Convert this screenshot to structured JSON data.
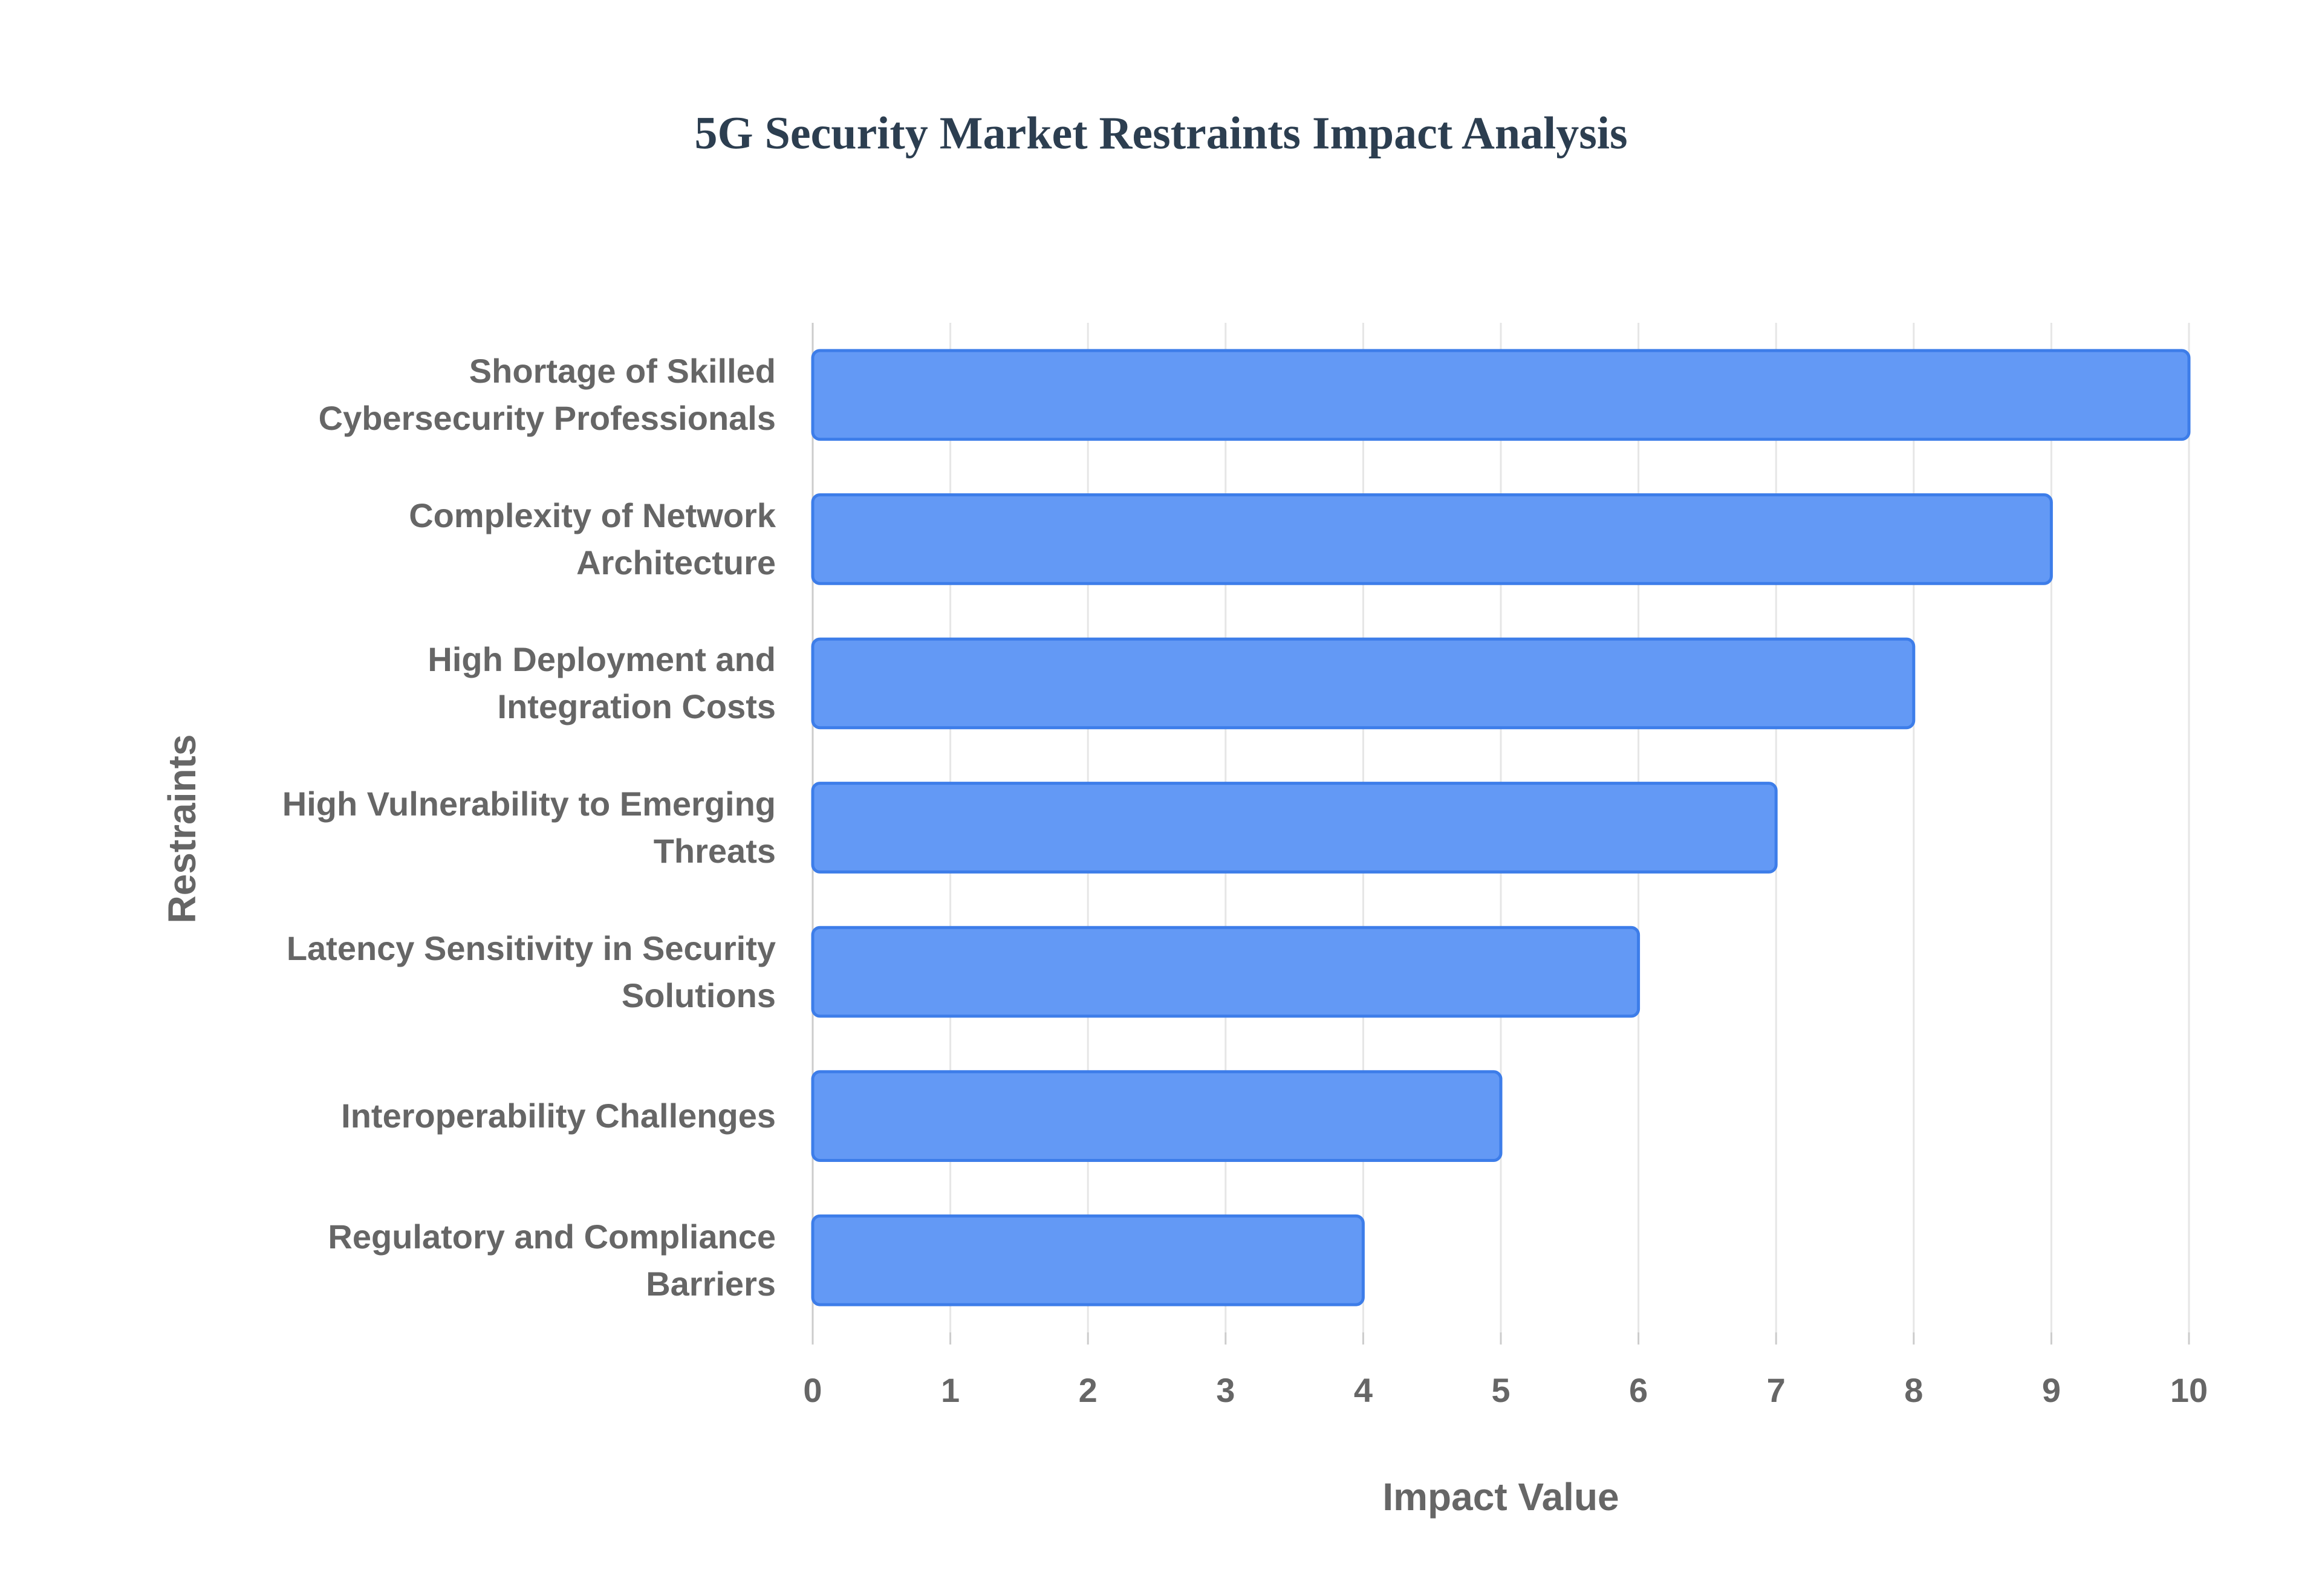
{
  "chart_data": {
    "type": "barh",
    "title": "5G Security Market Restraints Impact Analysis",
    "x_label": "Impact Value",
    "y_label": "Restraints",
    "categories": [
      "Shortage of Skilled Cybersecurity Professionals",
      "Complexity of Network Architecture",
      "High Deployment and Integration Costs",
      "High Vulnerability to Emerging Threats",
      "Latency Sensitivity in Security Solutions",
      "Interoperability Challenges",
      "Regulatory and Compliance Barriers"
    ],
    "values": [
      10,
      9,
      8,
      7,
      6,
      5,
      4
    ],
    "color": "#6399f5",
    "edge_color": "#3d7de9",
    "xlim": [
      0,
      10
    ],
    "xticks": [
      0,
      1,
      2,
      3,
      4,
      5,
      6,
      7,
      8,
      9,
      10
    ],
    "grid": true
  }
}
